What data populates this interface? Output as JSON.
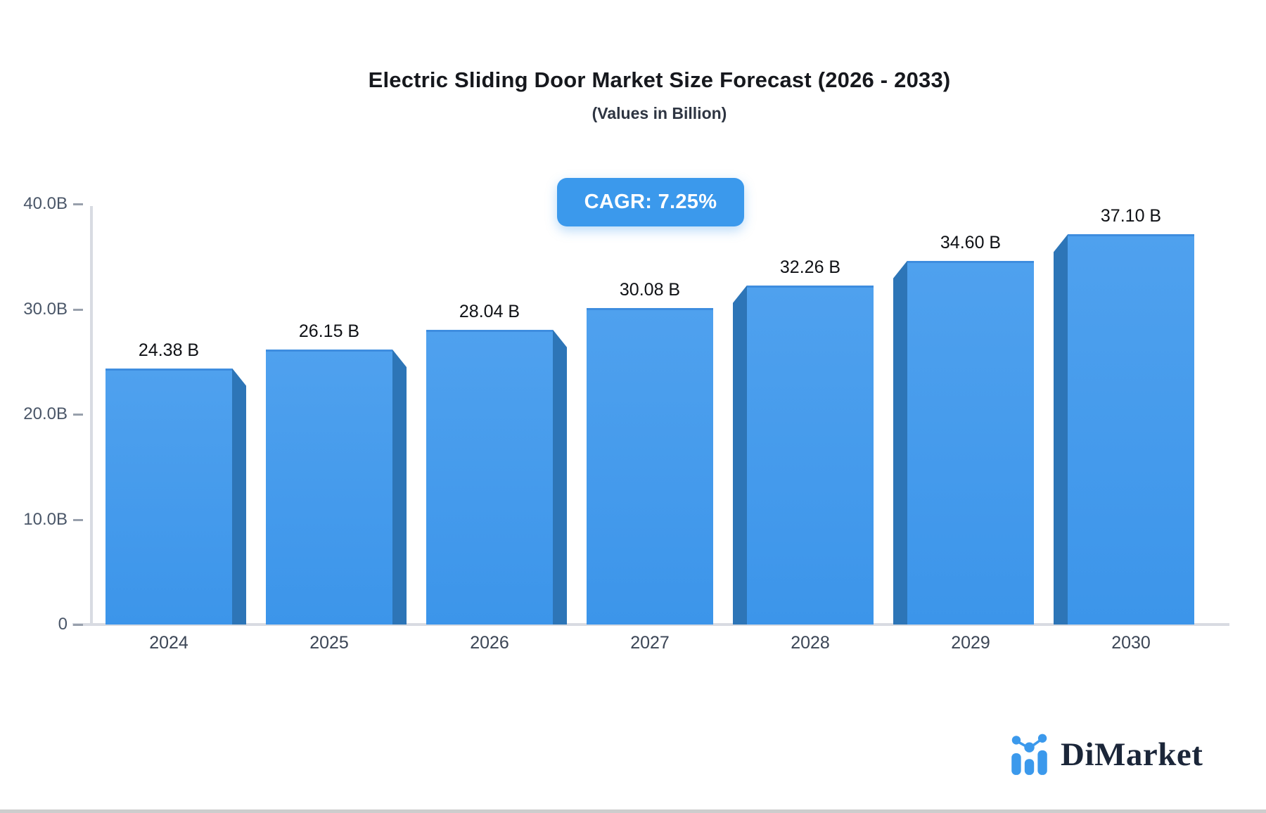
{
  "header": {
    "title": "Electric Sliding Door Market Size Forecast (2026 - 2033)",
    "subtitle": "(Values in Billion)"
  },
  "badge": {
    "label": "CAGR: 7.25%"
  },
  "logo": {
    "text": "DiMarket",
    "icon": "bar-chart-trend-icon"
  },
  "colors": {
    "bar_face_top": "#4fa1ee",
    "bar_face_bottom": "#3c95ea",
    "bar_face_edge": "#3e8ddf",
    "bar_side": "#2d75b7",
    "badge_bg": "#3b99ec",
    "axis_line": "#d8dbe2",
    "tick_dash": "#98a0ac",
    "logo_navy": "#1b2639",
    "logo_blue": "#3b99ec"
  },
  "chart_data": {
    "type": "bar",
    "title": "Electric Sliding Door Market Size Forecast (2026 - 2033)",
    "subtitle": "(Values in Billion)",
    "annotation": "CAGR: 7.25%",
    "categories": [
      "2024",
      "2025",
      "2026",
      "2027",
      "2028",
      "2029",
      "2030"
    ],
    "values": [
      24.38,
      26.15,
      28.04,
      30.08,
      32.26,
      34.6,
      37.1
    ],
    "value_labels": [
      "24.38 B",
      "26.15 B",
      "28.04 B",
      "30.08 B",
      "32.26 B",
      "34.60 B",
      "37.10 B"
    ],
    "xlabel": "",
    "ylabel": "",
    "ylim": [
      0,
      40
    ],
    "yticks": [
      {
        "value": 0,
        "label": "0"
      },
      {
        "value": 10,
        "label": "10.0B"
      },
      {
        "value": 20,
        "label": "20.0B"
      },
      {
        "value": 30,
        "label": "30.0B"
      },
      {
        "value": 40,
        "label": "40.0B"
      }
    ],
    "grid": false,
    "legend": false,
    "style": "3d-bars, perspective vanishing at center bar; sides face right for left bars, left for right bars"
  }
}
